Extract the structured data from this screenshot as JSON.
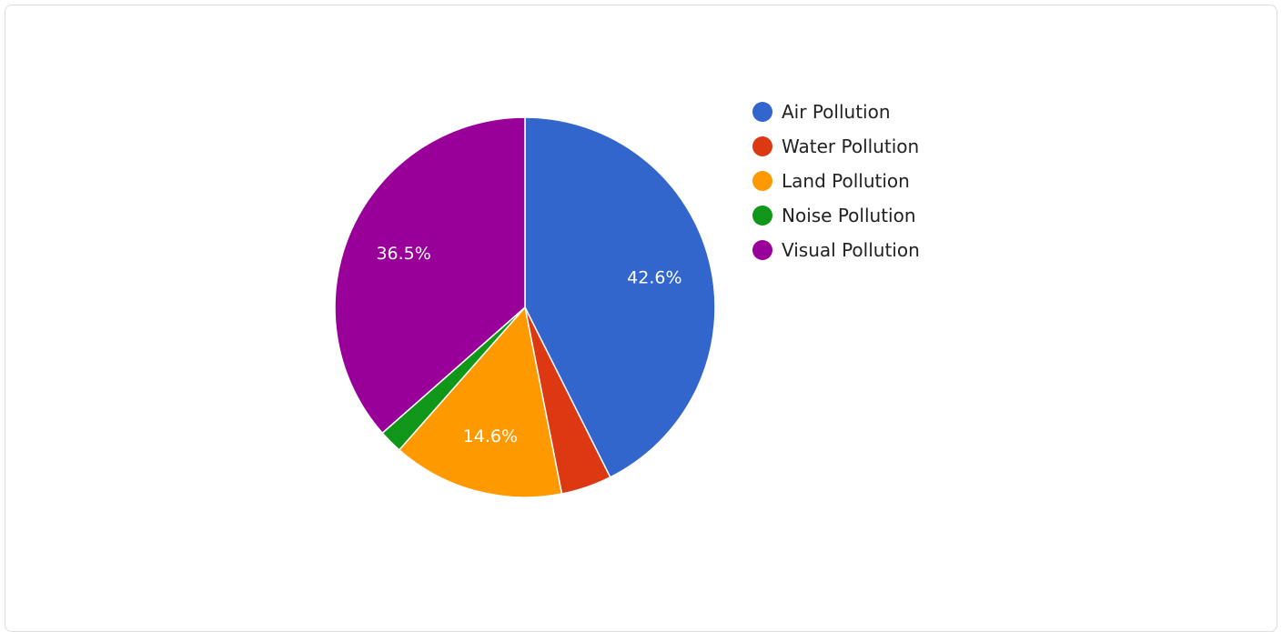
{
  "chart_data": {
    "type": "pie",
    "categories": [
      "Air Pollution",
      "Water Pollution",
      "Land Pollution",
      "Noise Pollution",
      "Visual Pollution"
    ],
    "values": [
      42.6,
      4.3,
      14.6,
      2.0,
      36.5
    ],
    "colors": [
      "#3366cc",
      "#dc3912",
      "#ff9900",
      "#109618",
      "#990099"
    ],
    "data_labels": [
      "42.6%",
      "",
      "14.6%",
      "",
      "36.5%"
    ],
    "legend_position": "right"
  }
}
